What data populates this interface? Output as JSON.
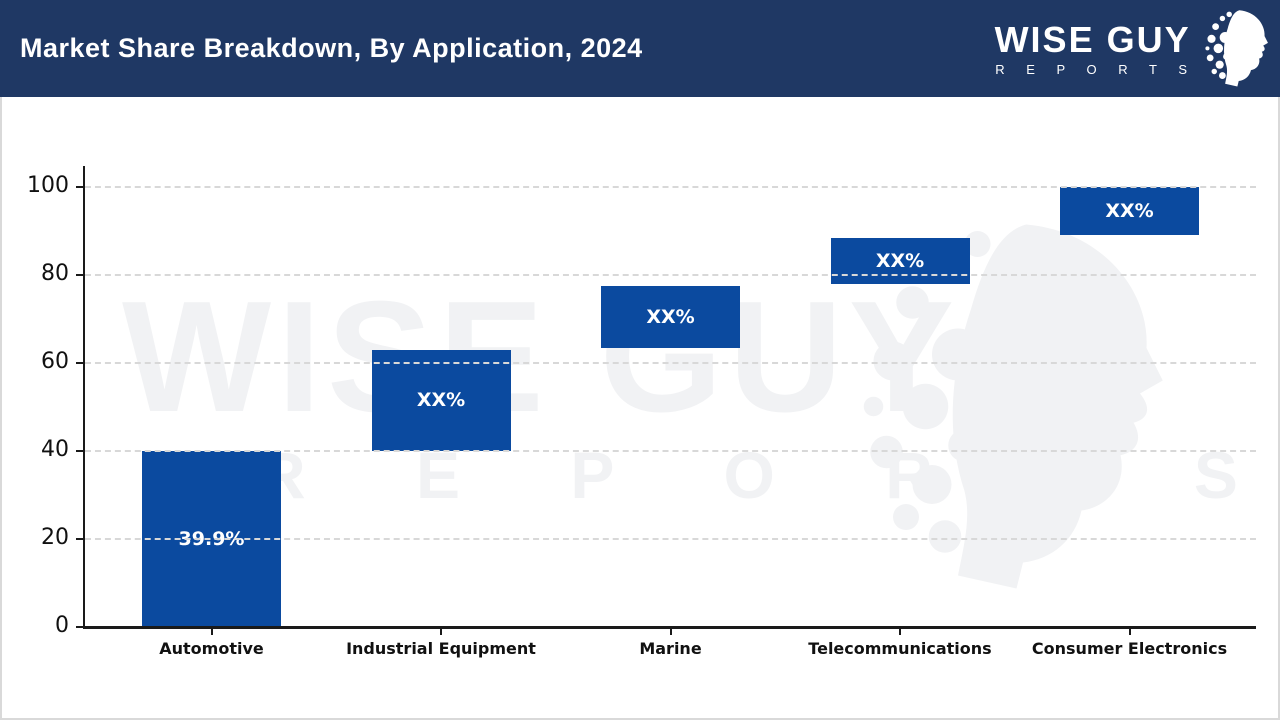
{
  "header": {
    "title": "Market Share Breakdown, By Application, 2024"
  },
  "logo": {
    "line1": "WISE GUY",
    "line2": "R E P O R T S",
    "head_icon": "dotted-head-profile"
  },
  "watermark": {
    "line1": "WISE GUY",
    "line2": "R E P O R T S",
    "head_icon": "dotted-head-profile"
  },
  "colors": {
    "header_bg": "#1f3864",
    "bar": "#0b4a9f",
    "bar_label": "#ffffff",
    "grid": "#d8d8d8",
    "axis": "#1a1a1a",
    "watermark": "#f1f2f4"
  },
  "chart_data": {
    "type": "bar",
    "subtype": "floating-waterfall-bars",
    "title": "Market Share Breakdown, By Application, 2024",
    "xlabel": "",
    "ylabel": "",
    "ylim": [
      0,
      105
    ],
    "yticks": [
      0,
      20,
      40,
      60,
      80,
      100
    ],
    "grid": "horizontal dashed, drawn above bars",
    "legend": null,
    "categories": [
      "Automotive",
      "Industrial Equipment",
      "Marine",
      "Telecommunications",
      "Consumer Electronics"
    ],
    "segments": [
      {
        "category": "Automotive",
        "start": 0,
        "end": 39.9,
        "value_label": "39.9%"
      },
      {
        "category": "Industrial Equipment",
        "start": 40,
        "end": 63,
        "value_label": "XX%"
      },
      {
        "category": "Marine",
        "start": 63.5,
        "end": 77.5,
        "value_label": "XX%"
      },
      {
        "category": "Telecommunications",
        "start": 78,
        "end": 88.5,
        "value_label": "XX%"
      },
      {
        "category": "Consumer Electronics",
        "start": 89,
        "end": 100,
        "value_label": "XX%"
      }
    ]
  }
}
